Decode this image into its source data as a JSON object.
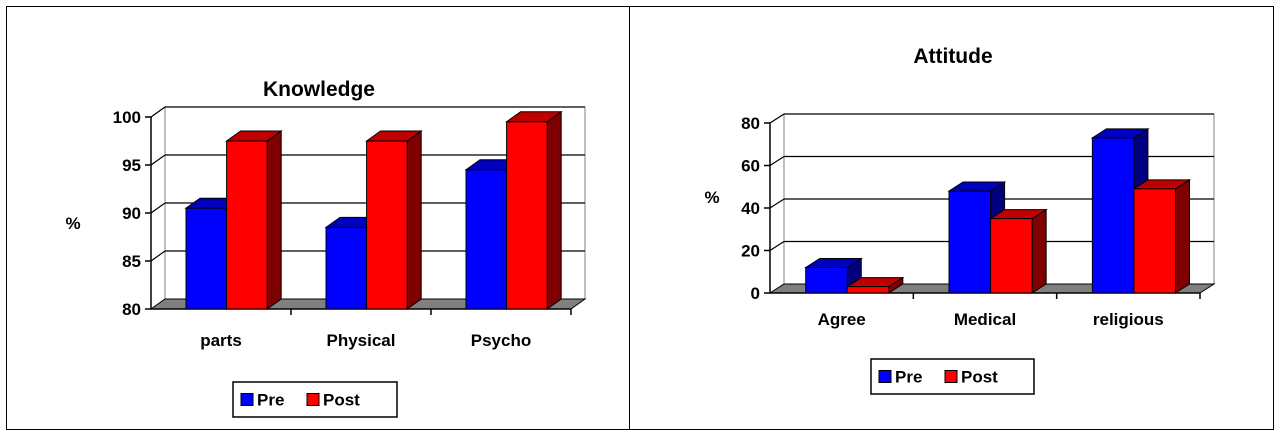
{
  "colors": {
    "pre_front": "#0000ff",
    "pre_side": "#00007f",
    "pre_top": "#0000bf",
    "post_front": "#ff0000",
    "post_side": "#7f0000",
    "post_top": "#bf0000",
    "floor": "#808080",
    "grid": "#000000"
  },
  "legend": {
    "pre": "Pre",
    "post": "Post"
  },
  "chart_data": [
    {
      "type": "bar",
      "title": "Knowledge",
      "xlabel": "",
      "ylabel": "%",
      "categories": [
        "parts",
        "Physical",
        "Psycho"
      ],
      "ylim": [
        80,
        100
      ],
      "yticks": [
        80,
        85,
        90,
        95,
        100
      ],
      "grid": true,
      "legend_position": "bottom",
      "series": [
        {
          "name": "Pre",
          "values": [
            90.5,
            88.5,
            94.5
          ]
        },
        {
          "name": "Post",
          "values": [
            97.5,
            97.5,
            99.5
          ]
        }
      ]
    },
    {
      "type": "bar",
      "title": "Attitude",
      "xlabel": "",
      "ylabel": "%",
      "categories": [
        "Agree",
        "Medical",
        "religious"
      ],
      "ylim": [
        0,
        80
      ],
      "yticks": [
        0,
        20,
        40,
        60,
        80
      ],
      "grid": true,
      "legend_position": "bottom",
      "series": [
        {
          "name": "Pre",
          "values": [
            12,
            48,
            73
          ]
        },
        {
          "name": "Post",
          "values": [
            3,
            35,
            49
          ]
        }
      ]
    }
  ]
}
